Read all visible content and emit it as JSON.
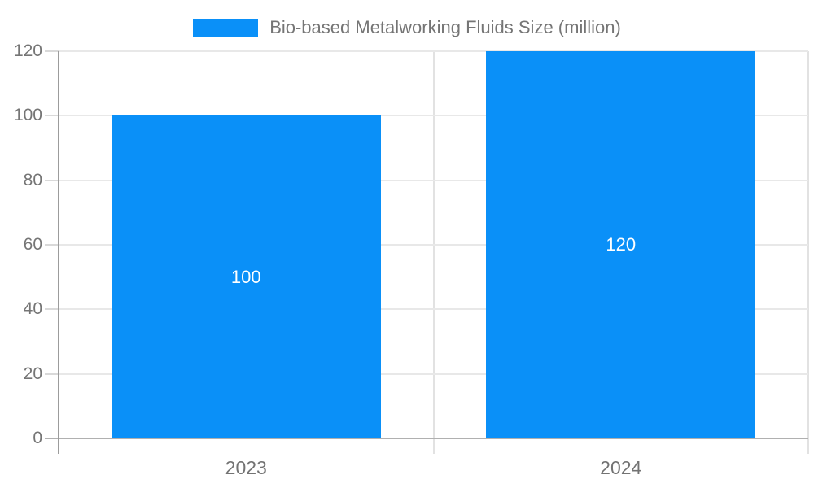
{
  "chart_data": {
    "type": "bar",
    "title": "Bio-based Metalworking Fluids Size (million)",
    "legend_position": "top",
    "legend": [
      {
        "label": "Bio-based Metalworking Fluids Size (million)",
        "color": "#0a90f8"
      }
    ],
    "categories": [
      "2023",
      "2024"
    ],
    "series": [
      {
        "name": "Bio-based Metalworking Fluids Size (million)",
        "color": "#0a90f8",
        "values": [
          100,
          120
        ],
        "data_labels": [
          "100",
          "120"
        ]
      }
    ],
    "xlabel": "",
    "ylabel": "",
    "ylim": [
      0,
      120
    ],
    "yticks": [
      0,
      20,
      40,
      60,
      80,
      100,
      120
    ],
    "grid": true,
    "colors": {
      "bar": "#0a90f8",
      "grid_line": "#e8e8e8",
      "category_boundary_line": "#e2e2e2",
      "axis_line": "#9c9c9c",
      "baseline": "#b0b0b0",
      "tick_label": "#757575",
      "data_label": "#ffffff",
      "background": "#ffffff"
    }
  }
}
